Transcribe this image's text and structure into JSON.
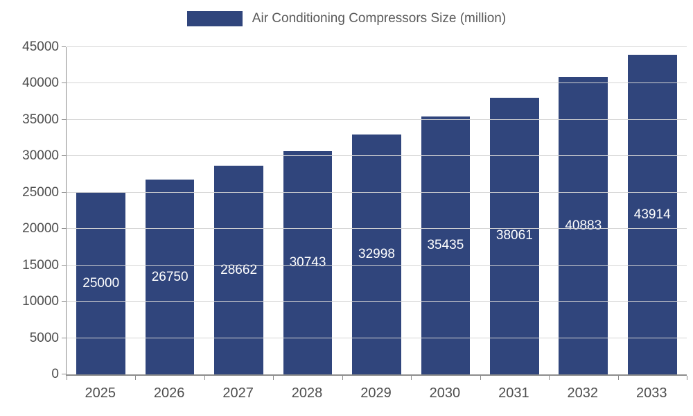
{
  "chart_data": {
    "type": "bar",
    "title": "Air Conditioning Compressors Size (million)",
    "legend": [
      "Air Conditioning Compressors Size (million)"
    ],
    "legend_position": "top",
    "categories": [
      "2025",
      "2026",
      "2027",
      "2028",
      "2029",
      "2030",
      "2031",
      "2032",
      "2033"
    ],
    "series": [
      {
        "name": "Air Conditioning Compressors Size (million)",
        "values": [
          25000,
          26750,
          28662,
          30743,
          32998,
          35435,
          38061,
          40883,
          43914
        ]
      }
    ],
    "xlabel": "",
    "ylabel": "",
    "ylim": [
      0,
      45000
    ],
    "ytick_step": 5000,
    "ytick_labels": [
      "0",
      "5000",
      "10000",
      "15000",
      "20000",
      "25000",
      "30000",
      "35000",
      "40000",
      "45000"
    ],
    "grid": true,
    "bar_color": "#30457c",
    "value_label_color": "#ffffff",
    "axis_text_color": "#4d4d4d",
    "title_color": "#5a5a5a",
    "grid_color": "#d4d4d4",
    "background_color": "#ffffff"
  }
}
